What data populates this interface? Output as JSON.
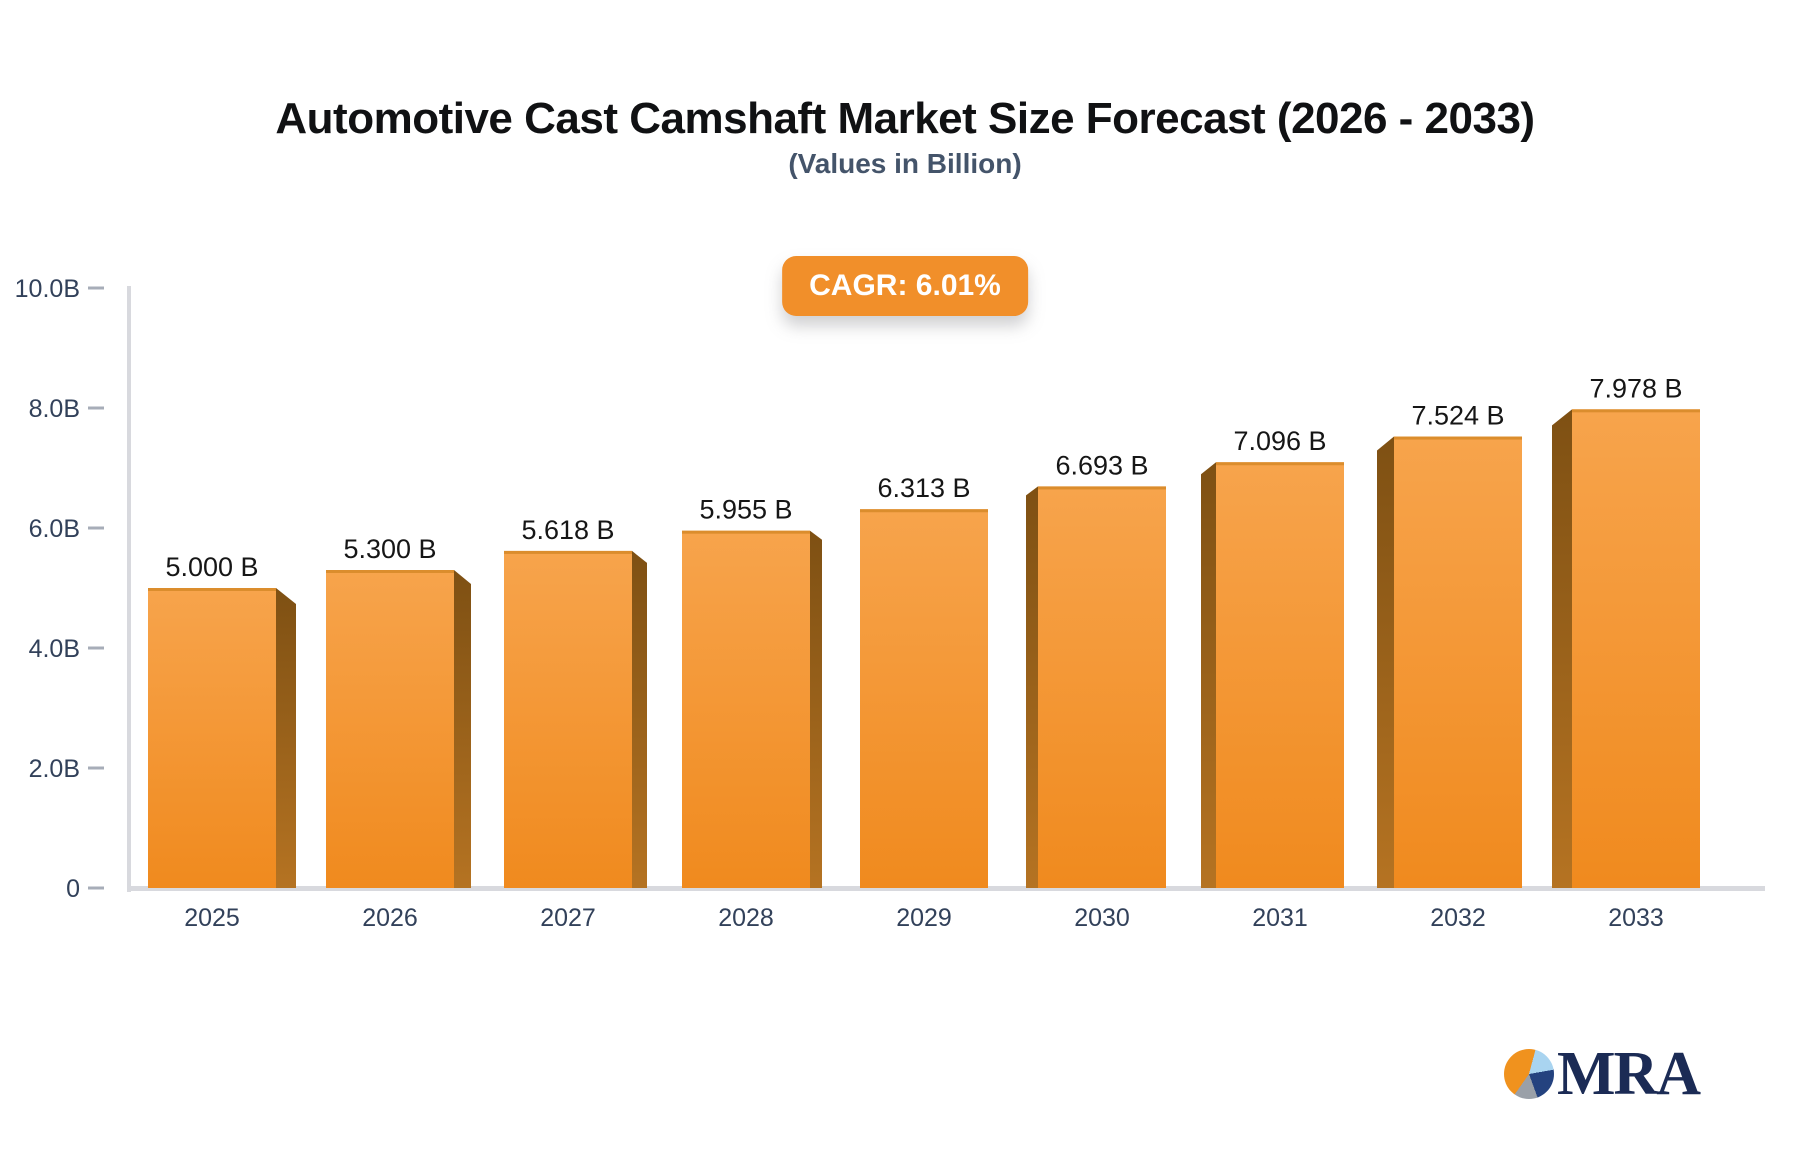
{
  "header": {
    "title": "Automotive Cast Camshaft Market Size Forecast (2026 - 2033)",
    "subtitle": "(Values in Billion)",
    "cagr_label": "CAGR: 6.01%"
  },
  "chart_data": {
    "type": "bar",
    "title": "Automotive Cast Camshaft Market Size Forecast (2026 - 2033)",
    "subtitle": "(Values in Billion)",
    "cagr": "6.01%",
    "categories": [
      "2025",
      "2026",
      "2027",
      "2028",
      "2029",
      "2030",
      "2031",
      "2032",
      "2033"
    ],
    "values": [
      5.0,
      5.3,
      5.618,
      5.955,
      6.313,
      6.693,
      7.096,
      7.524,
      7.978
    ],
    "value_labels": [
      "5.000 B",
      "5.300 B",
      "5.618 B",
      "5.955 B",
      "6.313 B",
      "6.693 B",
      "7.096 B",
      "7.524 B",
      "7.978 B"
    ],
    "xlabel": "",
    "ylabel": "",
    "ylim": [
      0,
      10
    ],
    "ytick_step": 2,
    "ytick_labels": [
      "0",
      "2.0B",
      "4.0B",
      "6.0B",
      "8.0B",
      "10.0B"
    ],
    "grid": "off",
    "legend": "none",
    "bar_style": "3d-perspective-center-vanishing"
  },
  "colors": {
    "bar_front_top": "#F7A44C",
    "bar_front_bottom": "#F08A1E",
    "bar_top_edge": "#DB8D2D",
    "bar_side_top": "#7E5013",
    "bar_side_bottom": "#B57322",
    "axis_line": "#D8D9DE",
    "tick_dash": "#A7ADB8",
    "tick_label": "#32415A",
    "value_label": "#161616",
    "badge_bg": "#F18F2A",
    "badge_text": "#FFFFFF",
    "logo_navy": "#1B2B55",
    "pie_orange": "#F0921E",
    "pie_lightblue": "#A9D4F0",
    "pie_navy": "#24427F",
    "pie_gray": "#9AA0A8"
  },
  "branding": {
    "logo_text": "MRA"
  }
}
